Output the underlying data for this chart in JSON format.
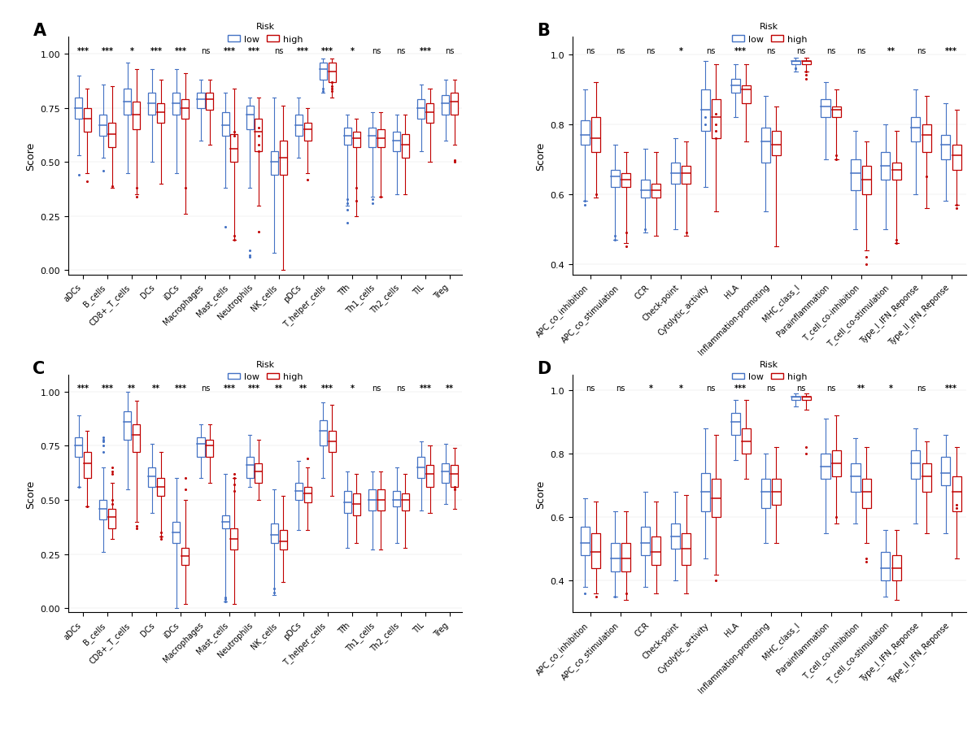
{
  "panel_A": {
    "label": "A",
    "categories": [
      "aDCs",
      "B_cells",
      "CD8+_T_cells",
      "DCs",
      "iDCs",
      "Macrophages",
      "Mast_cells",
      "Neutrophils",
      "NK_cells",
      "pDCs",
      "T_helper_cells",
      "Tfh",
      "Th1_cells",
      "Th2_cells",
      "TIL",
      "Treg"
    ],
    "significance": [
      "***",
      "***",
      "*",
      "***",
      "***",
      "ns",
      "***",
      "***",
      "ns",
      "***",
      "***",
      "*",
      "ns",
      "ns",
      "***",
      "ns"
    ],
    "ylim": [
      -0.02,
      1.08
    ],
    "yticks": [
      0.0,
      0.25,
      0.5,
      0.75,
      1.0
    ],
    "yticklabels": [
      "0.00",
      "0.25",
      "0.50",
      "0.75",
      "1.00"
    ],
    "ylabel": "Score",
    "low": {
      "q1": [
        0.7,
        0.62,
        0.72,
        0.72,
        0.72,
        0.75,
        0.62,
        0.65,
        0.44,
        0.62,
        0.88,
        0.58,
        0.57,
        0.55,
        0.7,
        0.72
      ],
      "med": [
        0.75,
        0.67,
        0.78,
        0.77,
        0.77,
        0.79,
        0.67,
        0.72,
        0.5,
        0.67,
        0.93,
        0.62,
        0.62,
        0.6,
        0.75,
        0.77
      ],
      "q3": [
        0.8,
        0.72,
        0.84,
        0.82,
        0.82,
        0.82,
        0.73,
        0.76,
        0.55,
        0.72,
        0.96,
        0.66,
        0.66,
        0.64,
        0.79,
        0.81
      ],
      "whislo": [
        0.53,
        0.52,
        0.45,
        0.5,
        0.45,
        0.6,
        0.38,
        0.38,
        0.08,
        0.52,
        0.82,
        0.3,
        0.34,
        0.35,
        0.55,
        0.6
      ],
      "whishi": [
        0.9,
        0.86,
        0.96,
        0.93,
        0.93,
        0.88,
        0.82,
        0.8,
        0.8,
        0.8,
        0.98,
        0.72,
        0.73,
        0.72,
        0.86,
        0.88
      ],
      "fliers_y": [
        [
          0.44
        ],
        [
          0.46
        ],
        [],
        [],
        [],
        [],
        [
          0.2
        ],
        [
          0.09,
          0.07,
          0.06
        ],
        [],
        [],
        [
          0.83,
          0.84
        ],
        [
          0.22,
          0.28,
          0.31,
          0.33
        ],
        [
          0.31,
          0.33
        ],
        [],
        [],
        []
      ]
    },
    "high": {
      "q1": [
        0.64,
        0.57,
        0.65,
        0.68,
        0.7,
        0.74,
        0.5,
        0.55,
        0.44,
        0.6,
        0.87,
        0.57,
        0.57,
        0.52,
        0.68,
        0.72
      ],
      "med": [
        0.7,
        0.63,
        0.72,
        0.73,
        0.75,
        0.79,
        0.56,
        0.64,
        0.52,
        0.65,
        0.92,
        0.61,
        0.61,
        0.58,
        0.73,
        0.78
      ],
      "q3": [
        0.75,
        0.68,
        0.78,
        0.77,
        0.79,
        0.82,
        0.63,
        0.7,
        0.6,
        0.68,
        0.96,
        0.64,
        0.65,
        0.63,
        0.77,
        0.82
      ],
      "whislo": [
        0.45,
        0.38,
        0.35,
        0.4,
        0.26,
        0.58,
        0.14,
        0.3,
        0.0,
        0.45,
        0.8,
        0.25,
        0.34,
        0.35,
        0.5,
        0.58
      ],
      "whishi": [
        0.84,
        0.85,
        0.93,
        0.88,
        0.91,
        0.88,
        0.84,
        0.8,
        0.76,
        0.75,
        0.98,
        0.7,
        0.73,
        0.72,
        0.84,
        0.88
      ],
      "fliers_y": [
        [
          0.41
        ],
        [
          0.39
        ],
        [
          0.34,
          0.38
        ],
        [],
        [
          0.38
        ],
        [],
        [
          0.14,
          0.16,
          0.62,
          0.64
        ],
        [
          0.18,
          0.55,
          0.58,
          0.62,
          0.66
        ],
        [],
        [
          0.42
        ],
        [
          0.83,
          0.84,
          0.85,
          0.87
        ],
        [
          0.32,
          0.38
        ],
        [
          0.34
        ],
        [],
        [],
        [
          0.51,
          0.5
        ]
      ]
    }
  },
  "panel_B": {
    "label": "B",
    "categories": [
      "APC_co_inhibition",
      "APC_co_stimulation",
      "CCR",
      "Check-point",
      "Cytolytic_activity",
      "HLA",
      "Inflammation-promoting",
      "MHC_class_I",
      "Parainflammation",
      "T_cell_co-inhibition",
      "T_cell_co-stimulation",
      "Type_I_IFN_Reponse",
      "Type_II_IFN_Reponse"
    ],
    "significance": [
      "ns",
      "ns",
      "ns",
      "*",
      "ns",
      "***",
      "ns",
      "ns",
      "ns",
      "ns",
      "**",
      "ns",
      "***"
    ],
    "ylim": [
      0.37,
      1.05
    ],
    "yticks": [
      0.4,
      0.6,
      0.8,
      1.0
    ],
    "yticklabels": [
      "0.4",
      "0.6",
      "0.8",
      "1.0"
    ],
    "ylabel": "Score",
    "low": {
      "q1": [
        0.74,
        0.62,
        0.59,
        0.63,
        0.78,
        0.89,
        0.69,
        0.97,
        0.82,
        0.61,
        0.64,
        0.75,
        0.7
      ],
      "med": [
        0.77,
        0.65,
        0.61,
        0.66,
        0.84,
        0.91,
        0.75,
        0.98,
        0.85,
        0.66,
        0.68,
        0.79,
        0.74
      ],
      "q3": [
        0.81,
        0.67,
        0.64,
        0.69,
        0.9,
        0.93,
        0.79,
        0.98,
        0.87,
        0.7,
        0.72,
        0.82,
        0.77
      ],
      "whislo": [
        0.58,
        0.47,
        0.49,
        0.5,
        0.62,
        0.82,
        0.55,
        0.95,
        0.7,
        0.5,
        0.5,
        0.6,
        0.58
      ],
      "whishi": [
        0.9,
        0.74,
        0.73,
        0.76,
        0.98,
        0.97,
        0.88,
        0.99,
        0.92,
        0.78,
        0.8,
        0.9,
        0.86
      ],
      "fliers_y": [
        [
          0.58,
          0.57
        ],
        [
          0.47,
          0.48
        ],
        [
          0.5
        ],
        [],
        [
          0.8,
          0.82
        ],
        [],
        [],
        [
          0.96,
          0.96
        ],
        [],
        [],
        [],
        [],
        []
      ]
    },
    "high": {
      "q1": [
        0.72,
        0.62,
        0.59,
        0.63,
        0.76,
        0.86,
        0.71,
        0.97,
        0.82,
        0.6,
        0.64,
        0.72,
        0.67
      ],
      "med": [
        0.76,
        0.64,
        0.61,
        0.66,
        0.82,
        0.9,
        0.74,
        0.98,
        0.84,
        0.64,
        0.67,
        0.77,
        0.71
      ],
      "q3": [
        0.82,
        0.66,
        0.63,
        0.68,
        0.87,
        0.91,
        0.78,
        0.98,
        0.85,
        0.68,
        0.69,
        0.8,
        0.74
      ],
      "whislo": [
        0.59,
        0.46,
        0.48,
        0.48,
        0.55,
        0.75,
        0.45,
        0.95,
        0.7,
        0.44,
        0.46,
        0.56,
        0.57
      ],
      "whishi": [
        0.92,
        0.72,
        0.72,
        0.75,
        0.97,
        0.97,
        0.85,
        0.99,
        0.9,
        0.75,
        0.78,
        0.88,
        0.84
      ],
      "fliers_y": [
        [
          0.6
        ],
        [
          0.49,
          0.45
        ],
        [],
        [
          0.49
        ],
        [
          0.76,
          0.78,
          0.8,
          0.83
        ],
        [],
        [],
        [
          0.93,
          0.94,
          0.95
        ],
        [
          0.7,
          0.71
        ],
        [
          0.4,
          0.42
        ],
        [
          0.47,
          0.46
        ],
        [
          0.65
        ],
        [
          0.56,
          0.57
        ]
      ]
    }
  },
  "panel_C": {
    "label": "C",
    "categories": [
      "aDCs",
      "B_cells",
      "CD8+_T_cells",
      "DCs",
      "iDCs",
      "Macrophages",
      "Mast_cells",
      "Neutrophils",
      "NK_cells",
      "pDCs",
      "T_helper_cells",
      "Tfh",
      "Th1_cells",
      "Th2_cells",
      "TIL",
      "Treg"
    ],
    "significance": [
      "***",
      "***",
      "**",
      "**",
      "***",
      "ns",
      "***",
      "***",
      "**",
      "**",
      "***",
      "*",
      "ns",
      "ns",
      "***",
      "**"
    ],
    "ylim": [
      -0.02,
      1.08
    ],
    "yticks": [
      0.0,
      0.25,
      0.5,
      0.75,
      1.0
    ],
    "yticklabels": [
      "0.00",
      "0.25",
      "0.50",
      "0.75",
      "1.00"
    ],
    "ylabel": "Score",
    "low": {
      "q1": [
        0.7,
        0.41,
        0.78,
        0.56,
        0.3,
        0.7,
        0.37,
        0.6,
        0.3,
        0.5,
        0.75,
        0.44,
        0.45,
        0.47,
        0.6,
        0.58
      ],
      "med": [
        0.75,
        0.46,
        0.86,
        0.61,
        0.35,
        0.76,
        0.4,
        0.66,
        0.34,
        0.54,
        0.82,
        0.49,
        0.5,
        0.5,
        0.65,
        0.63
      ],
      "q3": [
        0.79,
        0.5,
        0.91,
        0.65,
        0.4,
        0.79,
        0.43,
        0.7,
        0.39,
        0.58,
        0.87,
        0.54,
        0.55,
        0.54,
        0.7,
        0.67
      ],
      "whislo": [
        0.56,
        0.26,
        0.55,
        0.44,
        0.0,
        0.6,
        0.03,
        0.56,
        0.06,
        0.36,
        0.6,
        0.28,
        0.27,
        0.3,
        0.45,
        0.48
      ],
      "whishi": [
        0.89,
        0.65,
        1.0,
        0.76,
        0.6,
        0.85,
        0.62,
        0.8,
        0.55,
        0.68,
        0.95,
        0.63,
        0.63,
        0.65,
        0.77,
        0.76
      ],
      "fliers_y": [
        [
          0.56
        ],
        [
          0.72,
          0.75,
          0.77,
          0.78,
          0.79
        ],
        [],
        [],
        [],
        [],
        [
          0.03,
          0.04,
          0.05
        ],
        [],
        [
          0.07,
          0.09
        ],
        [],
        [],
        [],
        [],
        [],
        [],
        []
      ]
    },
    "high": {
      "q1": [
        0.6,
        0.37,
        0.72,
        0.52,
        0.2,
        0.7,
        0.27,
        0.58,
        0.27,
        0.49,
        0.72,
        0.43,
        0.45,
        0.45,
        0.56,
        0.56
      ],
      "med": [
        0.67,
        0.42,
        0.8,
        0.56,
        0.24,
        0.75,
        0.32,
        0.63,
        0.31,
        0.53,
        0.77,
        0.48,
        0.5,
        0.5,
        0.62,
        0.62
      ],
      "q3": [
        0.72,
        0.46,
        0.85,
        0.6,
        0.28,
        0.78,
        0.37,
        0.67,
        0.36,
        0.56,
        0.82,
        0.53,
        0.55,
        0.53,
        0.66,
        0.66
      ],
      "whislo": [
        0.47,
        0.32,
        0.4,
        0.33,
        0.02,
        0.58,
        0.02,
        0.5,
        0.12,
        0.36,
        0.52,
        0.3,
        0.27,
        0.28,
        0.44,
        0.46
      ],
      "whishi": [
        0.82,
        0.58,
        0.96,
        0.72,
        0.5,
        0.85,
        0.6,
        0.78,
        0.52,
        0.65,
        0.94,
        0.62,
        0.63,
        0.62,
        0.75,
        0.74
      ],
      "fliers_y": [
        [
          0.47
        ],
        [
          0.48,
          0.5,
          0.62,
          0.63,
          0.65
        ],
        [
          0.37,
          0.38
        ],
        [
          0.32,
          0.33,
          0.35
        ],
        [
          0.55,
          0.6
        ],
        [],
        [
          0.54,
          0.57,
          0.6,
          0.62
        ],
        [],
        [],
        [
          0.69
        ],
        [],
        [],
        [],
        [],
        [],
        [
          0.55,
          0.56
        ]
      ]
    }
  },
  "panel_D": {
    "label": "D",
    "categories": [
      "APC_co_inhibition",
      "APC_co_stimulation",
      "CCR",
      "Check-point",
      "Cytolytic_activity",
      "HLA",
      "Inflammation-promoting",
      "MHC_class_I",
      "Parainflammation",
      "T_cell_co-inhibition",
      "T_cell_co-stimulation",
      "Type_I_IFN_Reponse",
      "Type_II_IFN_Reponse"
    ],
    "significance": [
      "ns",
      "ns",
      "*",
      "*",
      "ns",
      "***",
      "ns",
      "ns",
      "ns",
      "**",
      "*",
      "ns",
      "***"
    ],
    "ylim": [
      0.3,
      1.05
    ],
    "yticks": [
      0.4,
      0.6,
      0.8,
      1.0
    ],
    "yticklabels": [
      "0.4",
      "0.6",
      "0.8",
      "1.0"
    ],
    "ylabel": "Score",
    "low": {
      "q1": [
        0.48,
        0.43,
        0.48,
        0.5,
        0.62,
        0.86,
        0.63,
        0.97,
        0.72,
        0.68,
        0.4,
        0.72,
        0.7
      ],
      "med": [
        0.52,
        0.47,
        0.52,
        0.54,
        0.68,
        0.9,
        0.68,
        0.98,
        0.76,
        0.73,
        0.44,
        0.77,
        0.74
      ],
      "q3": [
        0.57,
        0.52,
        0.57,
        0.58,
        0.74,
        0.93,
        0.72,
        0.98,
        0.8,
        0.77,
        0.49,
        0.81,
        0.79
      ],
      "whislo": [
        0.38,
        0.35,
        0.38,
        0.4,
        0.47,
        0.78,
        0.52,
        0.95,
        0.55,
        0.58,
        0.35,
        0.58,
        0.55
      ],
      "whishi": [
        0.66,
        0.62,
        0.68,
        0.68,
        0.88,
        0.97,
        0.8,
        0.99,
        0.91,
        0.85,
        0.56,
        0.88,
        0.86
      ],
      "fliers_y": [
        [
          0.36
        ],
        [
          0.35
        ],
        [],
        [],
        [],
        [],
        [],
        [],
        [],
        [],
        [],
        [],
        []
      ]
    },
    "high": {
      "q1": [
        0.44,
        0.43,
        0.45,
        0.45,
        0.6,
        0.8,
        0.64,
        0.97,
        0.73,
        0.63,
        0.4,
        0.68,
        0.62
      ],
      "med": [
        0.49,
        0.47,
        0.49,
        0.5,
        0.66,
        0.84,
        0.68,
        0.98,
        0.77,
        0.68,
        0.44,
        0.73,
        0.68
      ],
      "q3": [
        0.55,
        0.52,
        0.54,
        0.55,
        0.72,
        0.88,
        0.72,
        0.98,
        0.81,
        0.72,
        0.48,
        0.77,
        0.73
      ],
      "whislo": [
        0.36,
        0.34,
        0.36,
        0.36,
        0.42,
        0.72,
        0.52,
        0.94,
        0.58,
        0.52,
        0.34,
        0.55,
        0.47
      ],
      "whishi": [
        0.65,
        0.62,
        0.65,
        0.67,
        0.86,
        0.97,
        0.82,
        0.99,
        0.92,
        0.82,
        0.56,
        0.84,
        0.82
      ],
      "fliers_y": [
        [
          0.35
        ],
        [
          0.36
        ],
        [],
        [],
        [
          0.4
        ],
        [],
        [],
        [
          0.8,
          0.82
        ],
        [
          0.6
        ],
        [
          0.46,
          0.47
        ],
        [],
        [],
        [
          0.63,
          0.64
        ]
      ]
    }
  },
  "blue_color": "#4472C4",
  "red_color": "#C00000",
  "fig_width": 12.0,
  "fig_height": 9.2
}
